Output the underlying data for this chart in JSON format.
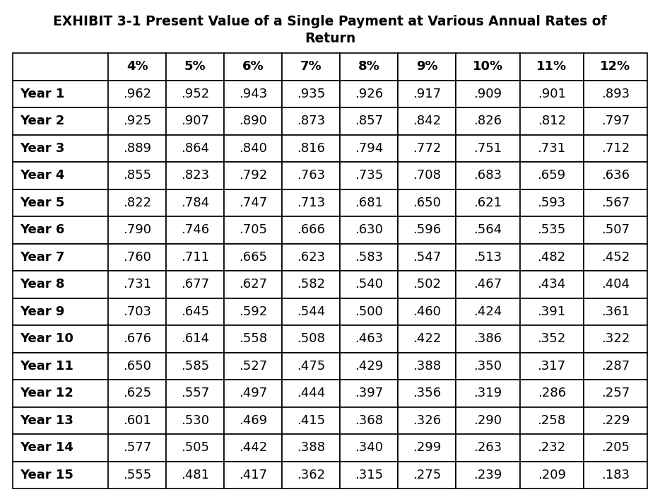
{
  "title_line1": "EXHIBIT 3-1 Present Value of a Single Payment at Various Annual Rates of",
  "title_line2": "Return",
  "col_headers": [
    "",
    "4%",
    "5%",
    "6%",
    "7%",
    "8%",
    "9%",
    "10%",
    "11%",
    "12%"
  ],
  "rows": [
    [
      "Year 1",
      ".962",
      ".952",
      ".943",
      ".935",
      ".926",
      ".917",
      ".909",
      ".901",
      ".893"
    ],
    [
      "Year 2",
      ".925",
      ".907",
      ".890",
      ".873",
      ".857",
      ".842",
      ".826",
      ".812",
      ".797"
    ],
    [
      "Year 3",
      ".889",
      ".864",
      ".840",
      ".816",
      ".794",
      ".772",
      ".751",
      ".731",
      ".712"
    ],
    [
      "Year 4",
      ".855",
      ".823",
      ".792",
      ".763",
      ".735",
      ".708",
      ".683",
      ".659",
      ".636"
    ],
    [
      "Year 5",
      ".822",
      ".784",
      ".747",
      ".713",
      ".681",
      ".650",
      ".621",
      ".593",
      ".567"
    ],
    [
      "Year 6",
      ".790",
      ".746",
      ".705",
      ".666",
      ".630",
      ".596",
      ".564",
      ".535",
      ".507"
    ],
    [
      "Year 7",
      ".760",
      ".711",
      ".665",
      ".623",
      ".583",
      ".547",
      ".513",
      ".482",
      ".452"
    ],
    [
      "Year 8",
      ".731",
      ".677",
      ".627",
      ".582",
      ".540",
      ".502",
      ".467",
      ".434",
      ".404"
    ],
    [
      "Year 9",
      ".703",
      ".645",
      ".592",
      ".544",
      ".500",
      ".460",
      ".424",
      ".391",
      ".361"
    ],
    [
      "Year 10",
      ".676",
      ".614",
      ".558",
      ".508",
      ".463",
      ".422",
      ".386",
      ".352",
      ".322"
    ],
    [
      "Year 11",
      ".650",
      ".585",
      ".527",
      ".475",
      ".429",
      ".388",
      ".350",
      ".317",
      ".287"
    ],
    [
      "Year 12",
      ".625",
      ".557",
      ".497",
      ".444",
      ".397",
      ".356",
      ".319",
      ".286",
      ".257"
    ],
    [
      "Year 13",
      ".601",
      ".530",
      ".469",
      ".415",
      ".368",
      ".326",
      ".290",
      ".258",
      ".229"
    ],
    [
      "Year 14",
      ".577",
      ".505",
      ".442",
      ".388",
      ".340",
      ".299",
      ".263",
      ".232",
      ".205"
    ],
    [
      "Year 15",
      ".555",
      ".481",
      ".417",
      ".362",
      ".315",
      ".275",
      ".239",
      ".209",
      ".183"
    ]
  ],
  "bg_color": "#ffffff",
  "text_color": "#000000",
  "title_fontsize": 13.5,
  "header_fontsize": 13,
  "cell_fontsize": 13,
  "row_label_fontsize": 13,
  "border_color": "#000000",
  "border_linewidth": 1.2,
  "fig_width": 9.34,
  "fig_height": 7.03,
  "dpi": 100
}
